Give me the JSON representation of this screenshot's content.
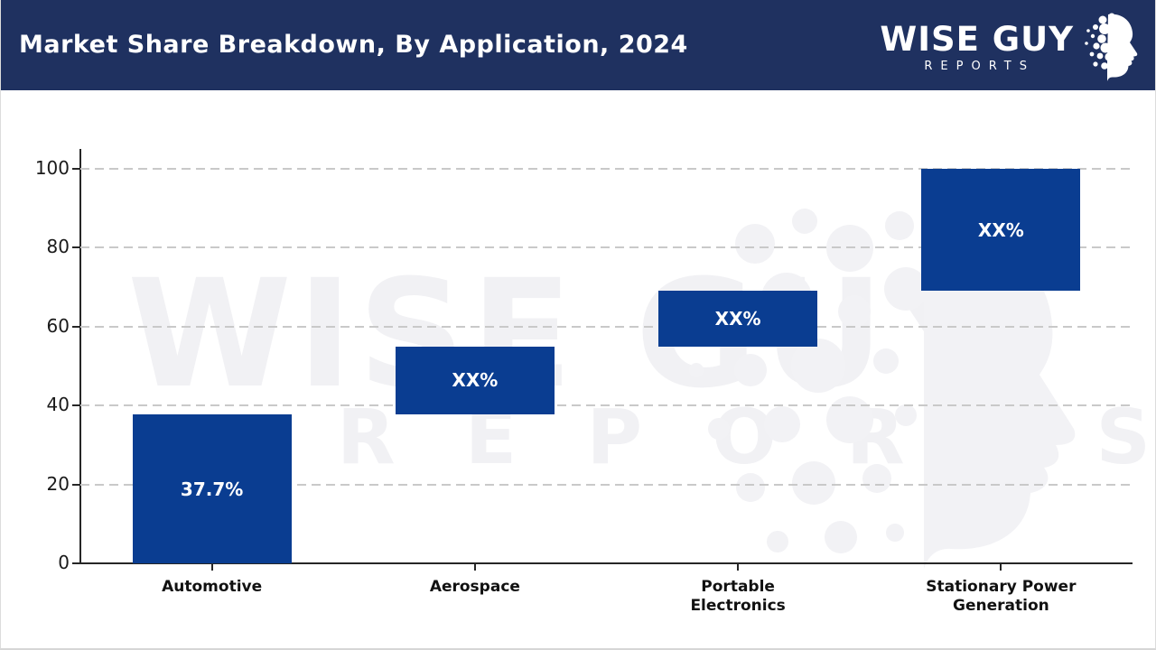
{
  "header": {
    "title": "Market Share Breakdown, By Application, 2024",
    "logo": {
      "line1": "WISE GUY",
      "line2": "REPORTS"
    }
  },
  "watermark": {
    "line1": "WISE GUY",
    "line2": "R E P O R T S"
  },
  "chart_data": {
    "type": "bar",
    "subtype": "waterfall",
    "title": "Market Share Breakdown, By Application, 2024",
    "categories": [
      "Automotive",
      "Aerospace",
      "Portable Electronics",
      "Stationary Power Generation"
    ],
    "segments": [
      {
        "category": "Automotive",
        "start": 0,
        "end": 37.7,
        "label": "37.7%"
      },
      {
        "category": "Aerospace",
        "start": 37.7,
        "end": 55,
        "label": "XX%"
      },
      {
        "category": "Portable Electronics",
        "start": 55,
        "end": 69,
        "label": "XX%"
      },
      {
        "category": "Stationary Power Generation",
        "start": 69,
        "end": 100,
        "label": "XX%"
      }
    ],
    "ylim": [
      0,
      105
    ],
    "yticks": [
      0,
      20,
      40,
      60,
      80,
      100
    ],
    "grid": "dashed horizontal gridlines",
    "legend": "none",
    "bar_color": "#0a3d91",
    "label_color": "#ffffff",
    "axis_color": "#262626"
  },
  "colors": {
    "header_bg": "#1f3160",
    "bar": "#0a3d91",
    "grid": "#c9c9c9",
    "watermark": "#f1f1f4"
  }
}
